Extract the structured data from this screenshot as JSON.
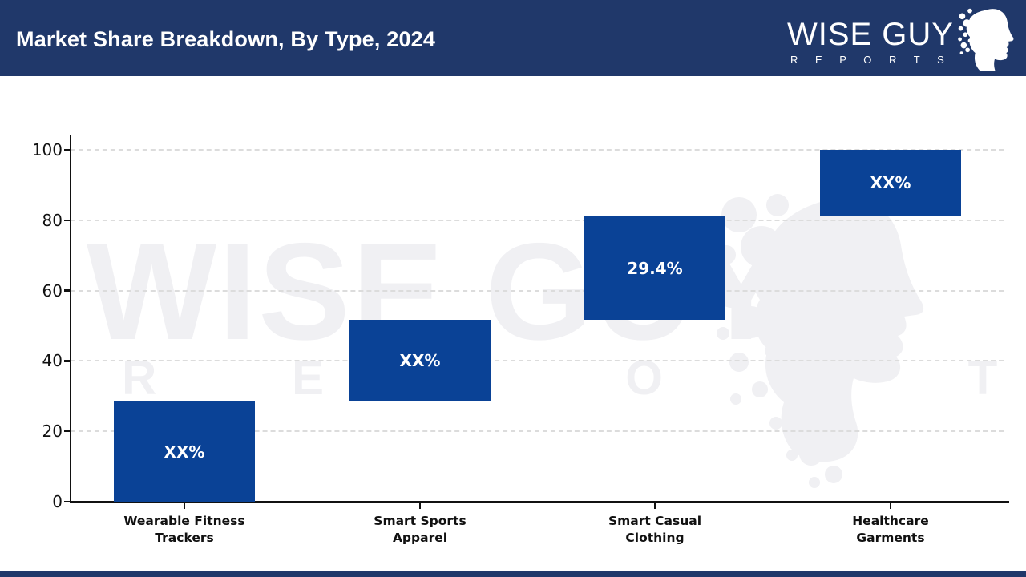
{
  "header": {
    "title": "Market Share Breakdown, By Type, 2024",
    "logo": {
      "name": "Wise Guy Reports",
      "line1": "WISE GUY",
      "line2": "R E P O R T S"
    }
  },
  "watermark": {
    "line1": "WISE GUY",
    "line2": "R E P O R T S"
  },
  "colors": {
    "header_bg": "#20386a",
    "footer_bg": "#20386a",
    "bar": "#0a4296",
    "bar_label": "#ffffff",
    "watermark": "#f0f0f3",
    "gridline": "#dcdcdc",
    "axis": "#111111"
  },
  "chart_data": {
    "type": "bar",
    "variant": "waterfall",
    "title": "Market Share Breakdown, By Type, 2024",
    "xlabel": "",
    "ylabel": "",
    "ylim": [
      0,
      100
    ],
    "yticks": [
      0,
      20,
      40,
      60,
      80,
      100
    ],
    "grid": {
      "y": true,
      "style": "dashed"
    },
    "legend": null,
    "bar_color": "#0a4296",
    "categories": [
      "Wearable Fitness\nTrackers",
      "Smart Sports\nApparel",
      "Smart Casual\nClothing",
      "Healthcare\nGarments"
    ],
    "segments": [
      {
        "category": "Wearable Fitness Trackers",
        "start": 0,
        "end": 28.4,
        "value": 28.4,
        "label": "XX%"
      },
      {
        "category": "Smart Sports Apparel",
        "start": 28.4,
        "end": 51.7,
        "value": 23.3,
        "label": "XX%"
      },
      {
        "category": "Smart Casual Clothing",
        "start": 51.7,
        "end": 81.1,
        "value": 29.4,
        "label": "29.4%"
      },
      {
        "category": "Healthcare Garments",
        "start": 81.1,
        "end": 100,
        "value": 18.9,
        "label": "XX%"
      }
    ]
  }
}
